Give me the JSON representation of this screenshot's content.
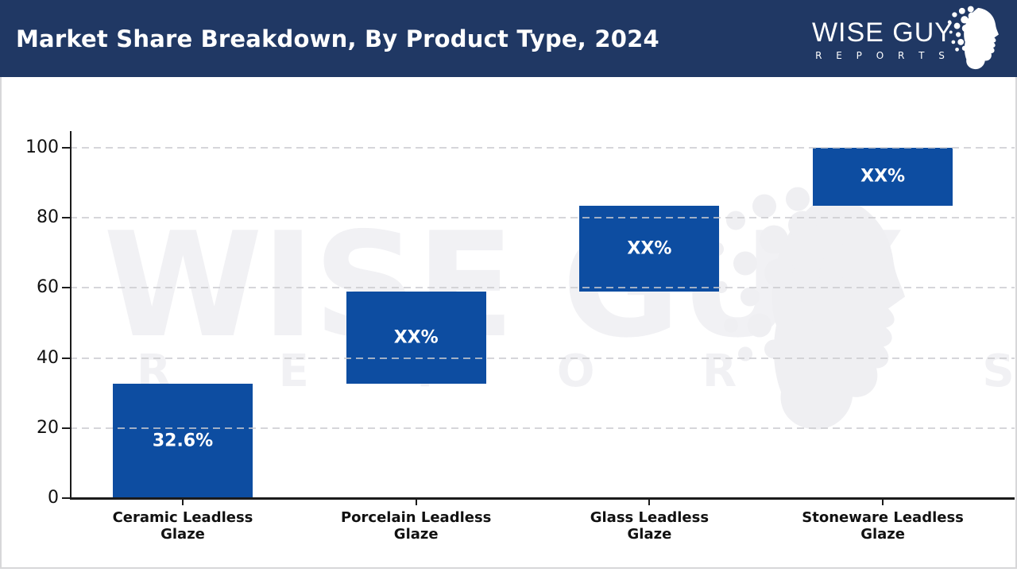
{
  "header": {
    "title": "Market Share Breakdown, By Product Type, 2024",
    "logo": {
      "line1": "WISE GUY",
      "line2": "R E P O R T S"
    }
  },
  "watermark": {
    "line1": "WISE GUY",
    "line2": "R E P O R T S"
  },
  "chart_data": {
    "type": "bar",
    "subtype": "floating-waterfall",
    "title": "Market Share Breakdown, By Product Type, 2024",
    "categories": [
      "Ceramic Leadless\nGlaze",
      "Porcelain Leadless\nGlaze",
      "Glass Leadless\nGlaze",
      "Stoneware Leadless\nGlaze"
    ],
    "bars": [
      {
        "value_label": "32.6%",
        "start": 0,
        "end": 32.6
      },
      {
        "value_label": "XX%",
        "start": 32.6,
        "end": 59.0
      },
      {
        "value_label": "XX%",
        "start": 59.0,
        "end": 83.5
      },
      {
        "value_label": "XX%",
        "start": 83.5,
        "end": 100.0
      }
    ],
    "xlabel": "",
    "ylabel": "",
    "ylim": [
      0,
      104.5
    ],
    "yticks": [
      0,
      20,
      40,
      60,
      80,
      100
    ],
    "grid": {
      "show": true,
      "axis": "y",
      "style": "dashed"
    },
    "legend": null,
    "colors": {
      "bar": "#0d4da1",
      "bar_label": "#ffffff",
      "axis": "#1b1b1b",
      "grid": "#cbcbcf",
      "header_bg": "#203864",
      "watermark": "#f1f1f4",
      "card_border": "#d7d7d9"
    }
  }
}
